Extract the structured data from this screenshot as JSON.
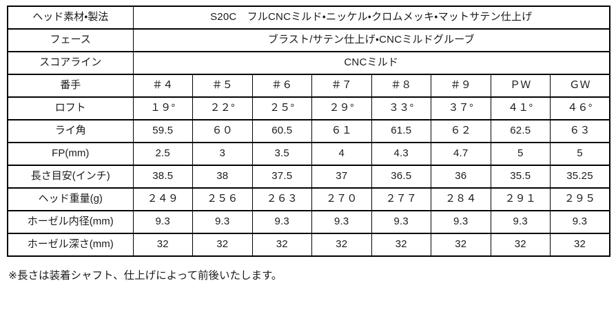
{
  "table": {
    "spec_rows": [
      {
        "label": "ヘッド素材・製法",
        "value": "S20C　フルCNCミルド・ニッケル・クロムメッキ・マットサテン仕上げ"
      },
      {
        "label": "フェース",
        "value": "ブラスト/サテン仕上げ・CNCミルドグルーブ"
      },
      {
        "label": "スコアライン",
        "value": "CNCミルド"
      }
    ],
    "data_rows": [
      {
        "label": "番手",
        "values": [
          "＃４",
          "＃５",
          "＃６",
          "＃７",
          "＃８",
          "＃９",
          "ＰＷ",
          "ＧＷ"
        ]
      },
      {
        "label": "ロフト",
        "values": [
          "１９°",
          "２２°",
          "２５°",
          "２９°",
          "３３°",
          "３７°",
          "４１°",
          "４６°"
        ]
      },
      {
        "label": "ライ角",
        "values": [
          "59.5",
          "６０",
          "60.5",
          "６１",
          "61.5",
          "６２",
          "62.5",
          "６３"
        ]
      },
      {
        "label": "FP(mm)",
        "values": [
          "2.5",
          "3",
          "3.5",
          "4",
          "4.3",
          "4.7",
          "5",
          "5"
        ]
      },
      {
        "label": "長さ目安(インチ)",
        "values": [
          "38.5",
          "38",
          "37.5",
          "37",
          "36.5",
          "36",
          "35.5",
          "35.25"
        ]
      },
      {
        "label": "ヘッド重量(g)",
        "values": [
          "２４９",
          "２５６",
          "２６３",
          "２７０",
          "２７７",
          "２８４",
          "２９１",
          "２９５"
        ]
      },
      {
        "label": "ホーゼル内径(mm)",
        "values": [
          "9.3",
          "9.3",
          "9.3",
          "9.3",
          "9.3",
          "9.3",
          "9.3",
          "9.3"
        ]
      },
      {
        "label": "ホーゼル深さ(mm)",
        "values": [
          "32",
          "32",
          "32",
          "32",
          "32",
          "32",
          "32",
          "32"
        ]
      }
    ]
  },
  "footnote": "※長さは装着シャフト、仕上げによって前後いたします。",
  "colors": {
    "border": "#000000",
    "text": "#1a1a1a",
    "background": "#ffffff"
  }
}
